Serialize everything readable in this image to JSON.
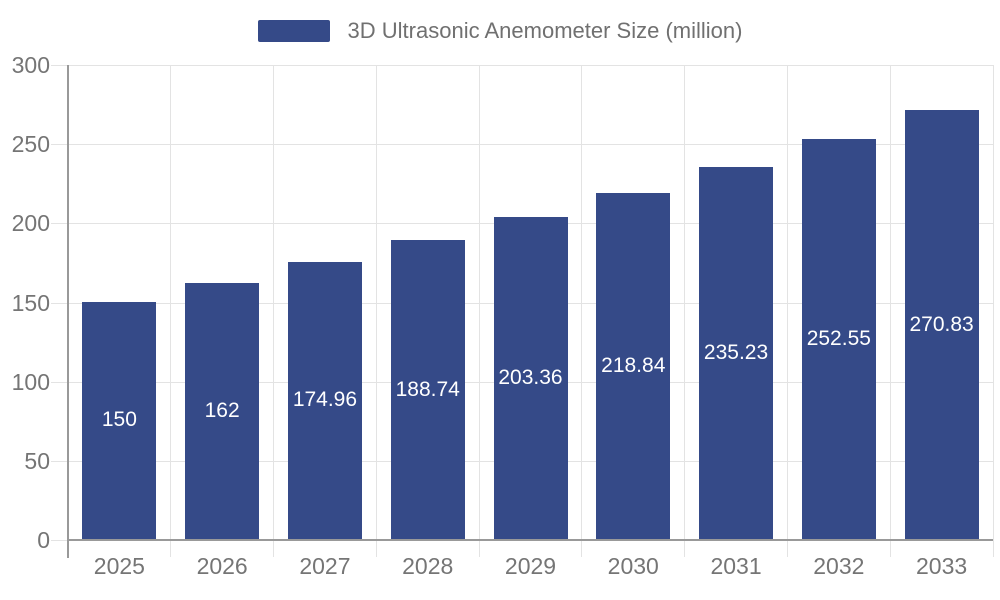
{
  "chart_data": {
    "type": "bar",
    "title": "3D Ultrasonic Anemometer Size (million)",
    "categories": [
      "2025",
      "2026",
      "2027",
      "2028",
      "2029",
      "2030",
      "2031",
      "2032",
      "2033"
    ],
    "values": [
      150,
      162,
      174.96,
      188.74,
      203.36,
      218.84,
      235.23,
      252.55,
      270.83
    ],
    "value_labels": [
      "150",
      "162",
      "174.96",
      "188.74",
      "203.36",
      "218.84",
      "235.23",
      "252.55",
      "270.83"
    ],
    "xlabel": "",
    "ylabel": "",
    "ylim": [
      0,
      300
    ],
    "yticks": [
      0,
      50,
      100,
      150,
      200,
      250,
      300
    ],
    "grid": true,
    "legend_position": "top",
    "colors": {
      "bar": "#354a88",
      "grid": "#e3e3e3",
      "axis": "#999999",
      "tick_text": "#757575",
      "legend_text": "#707070",
      "value_text": "#ffffff"
    }
  }
}
